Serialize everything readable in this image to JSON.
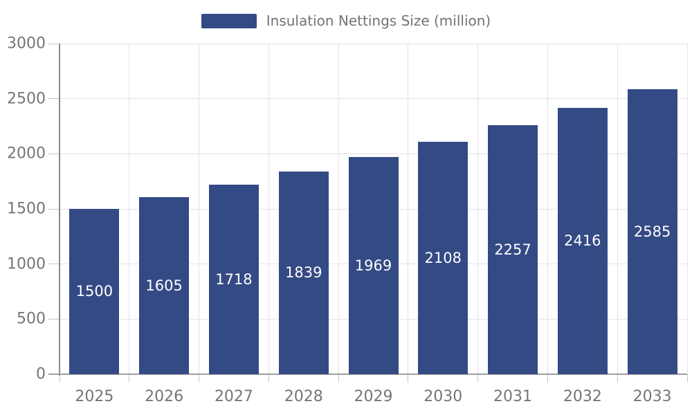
{
  "legend": {
    "label": "Insulation Nettings Size (million)"
  },
  "chart_data": {
    "type": "bar",
    "title": "Insulation Nettings Size (million)",
    "categories": [
      "2025",
      "2026",
      "2027",
      "2028",
      "2029",
      "2030",
      "2031",
      "2032",
      "2033"
    ],
    "values": [
      1500,
      1605,
      1718,
      1839,
      1969,
      2108,
      2257,
      2416,
      2585
    ],
    "xlabel": "",
    "ylabel": "",
    "ylim": [
      0,
      3000
    ],
    "yticks": [
      0,
      500,
      1000,
      1500,
      2000,
      2500,
      3000
    ],
    "grid": true,
    "legend_position": "top",
    "value_labels": "inside-center",
    "colors": {
      "bar": "#344a85",
      "value_label": "#ffffff",
      "axis_text": "#757575",
      "grid_line": "#e3e3e3",
      "y_axis_line": "#8a8a8a",
      "x_axis_line": "#9e9e9e",
      "tick_mark": "#c4c4c4",
      "legend_text": "#737373",
      "background": "#ffffff"
    }
  }
}
